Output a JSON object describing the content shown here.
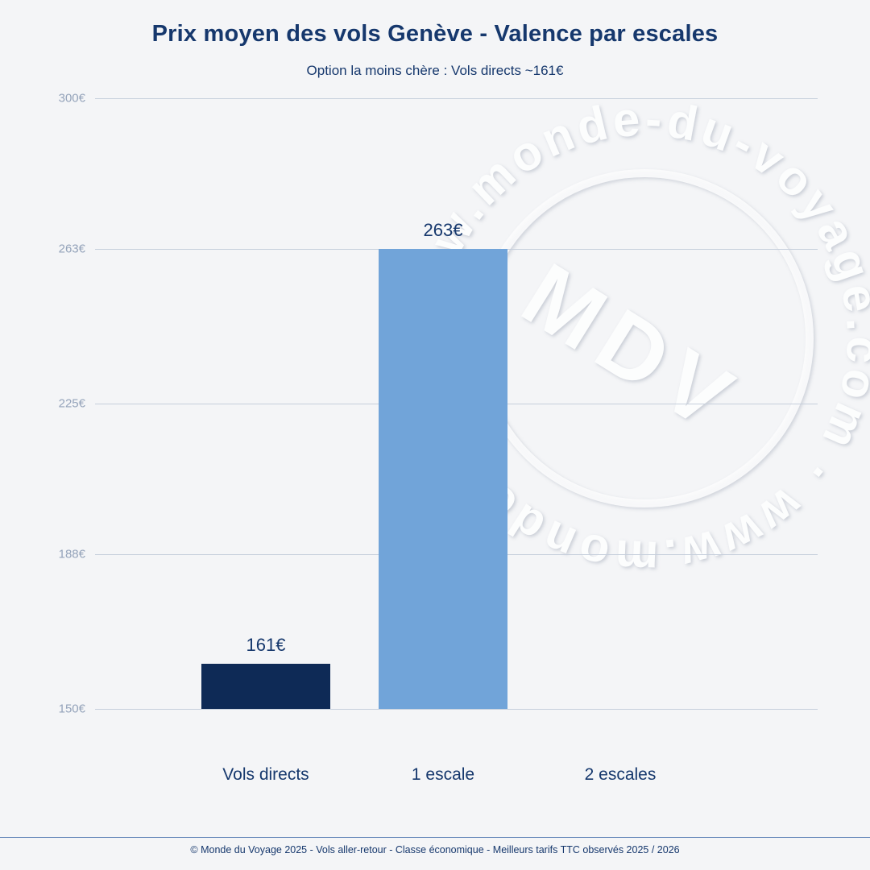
{
  "title": "Prix moyen des vols Genève - Valence par escales",
  "subtitle": "Option la moins chère : Vols directs ~161€",
  "footer": "© Monde du Voyage 2025 - Vols aller-retour - Classe économique - Meilleurs tarifs TTC observés 2025 / 2026",
  "watermark": {
    "ring_text": "www.monde-du-voyage.com",
    "center_text": "MDV"
  },
  "colors": {
    "background": "#f4f5f7",
    "title": "#16386d",
    "axis_label": "#94a3ba",
    "gridline": "#c6cfdc",
    "bar_direct": "#0e2a56",
    "bar_one_stop": "#71a4d9",
    "footer_line": "#5a7fb5"
  },
  "chart_data": {
    "type": "bar",
    "title": "Prix moyen des vols Genève - Valence par escales",
    "subtitle": "Option la moins chère : Vols directs ~161€",
    "categories": [
      "Vols directs",
      "1 escale",
      "2 escales"
    ],
    "values": [
      161,
      263,
      null
    ],
    "value_labels": [
      "161€",
      "263€",
      null
    ],
    "bar_colors": [
      "#0e2a56",
      "#71a4d9",
      null
    ],
    "xlabel": "",
    "ylabel": "",
    "ylim": [
      150,
      300
    ],
    "yticks": [
      300,
      263,
      225,
      188,
      150
    ],
    "ytick_labels": [
      "300€",
      "263€",
      "225€",
      "188€",
      "150€"
    ],
    "grid": true,
    "legend": false
  }
}
